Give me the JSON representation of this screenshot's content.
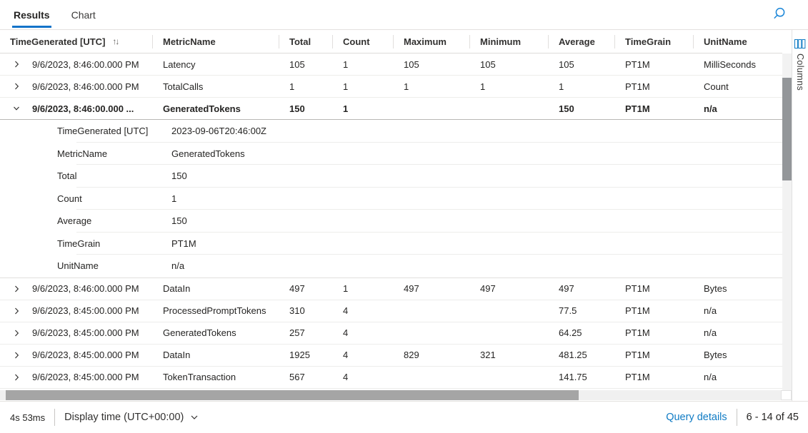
{
  "tabs": {
    "results": "Results",
    "chart": "Chart"
  },
  "columns_pane": {
    "label": "Columns"
  },
  "table": {
    "columns": [
      "TimeGenerated [UTC]",
      "MetricName",
      "Total",
      "Count",
      "Maximum",
      "Minimum",
      "Average",
      "TimeGrain",
      "UnitName"
    ],
    "sort_icon": "↑↓",
    "rows": [
      {
        "expanded": false,
        "time": "9/6/2023, 8:46:00.000 PM",
        "metric": "Latency",
        "total": "105",
        "count": "1",
        "maximum": "105",
        "minimum": "105",
        "average": "105",
        "timegrain": "PT1M",
        "unitname": "MilliSeconds"
      },
      {
        "expanded": false,
        "time": "9/6/2023, 8:46:00.000 PM",
        "metric": "TotalCalls",
        "total": "1",
        "count": "1",
        "maximum": "1",
        "minimum": "1",
        "average": "1",
        "timegrain": "PT1M",
        "unitname": "Count"
      },
      {
        "expanded": true,
        "time": "9/6/2023, 8:46:00.000 ...",
        "metric": "GeneratedTokens",
        "total": "150",
        "count": "1",
        "maximum": "",
        "minimum": "",
        "average": "150",
        "timegrain": "PT1M",
        "unitname": "n/a",
        "details": [
          {
            "label": "TimeGenerated [UTC]",
            "value": "2023-09-06T20:46:00Z"
          },
          {
            "label": "MetricName",
            "value": "GeneratedTokens"
          },
          {
            "label": "Total",
            "value": "150"
          },
          {
            "label": "Count",
            "value": "1"
          },
          {
            "label": "Average",
            "value": "150"
          },
          {
            "label": "TimeGrain",
            "value": "PT1M"
          },
          {
            "label": "UnitName",
            "value": "n/a"
          }
        ]
      },
      {
        "expanded": false,
        "time": "9/6/2023, 8:46:00.000 PM",
        "metric": "DataIn",
        "total": "497",
        "count": "1",
        "maximum": "497",
        "minimum": "497",
        "average": "497",
        "timegrain": "PT1M",
        "unitname": "Bytes"
      },
      {
        "expanded": false,
        "time": "9/6/2023, 8:45:00.000 PM",
        "metric": "ProcessedPromptTokens",
        "total": "310",
        "count": "4",
        "maximum": "",
        "minimum": "",
        "average": "77.5",
        "timegrain": "PT1M",
        "unitname": "n/a"
      },
      {
        "expanded": false,
        "time": "9/6/2023, 8:45:00.000 PM",
        "metric": "GeneratedTokens",
        "total": "257",
        "count": "4",
        "maximum": "",
        "minimum": "",
        "average": "64.25",
        "timegrain": "PT1M",
        "unitname": "n/a"
      },
      {
        "expanded": false,
        "time": "9/6/2023, 8:45:00.000 PM",
        "metric": "DataIn",
        "total": "1925",
        "count": "4",
        "maximum": "829",
        "minimum": "321",
        "average": "481.25",
        "timegrain": "PT1M",
        "unitname": "Bytes"
      },
      {
        "expanded": false,
        "time": "9/6/2023, 8:45:00.000 PM",
        "metric": "TokenTransaction",
        "total": "567",
        "count": "4",
        "maximum": "",
        "minimum": "",
        "average": "141.75",
        "timegrain": "PT1M",
        "unitname": "n/a"
      }
    ]
  },
  "footer": {
    "duration": "4s 53ms",
    "display_time": "Display time (UTC+00:00)",
    "query_details": "Query details",
    "range": "6 - 14 of 45"
  },
  "colors": {
    "accent": "#0078d4",
    "link": "#0f7bc4",
    "search_icon": "#1a86d8",
    "columns_icon": "#0f7bc4",
    "scroll_thumb": "#9b9b9b"
  }
}
